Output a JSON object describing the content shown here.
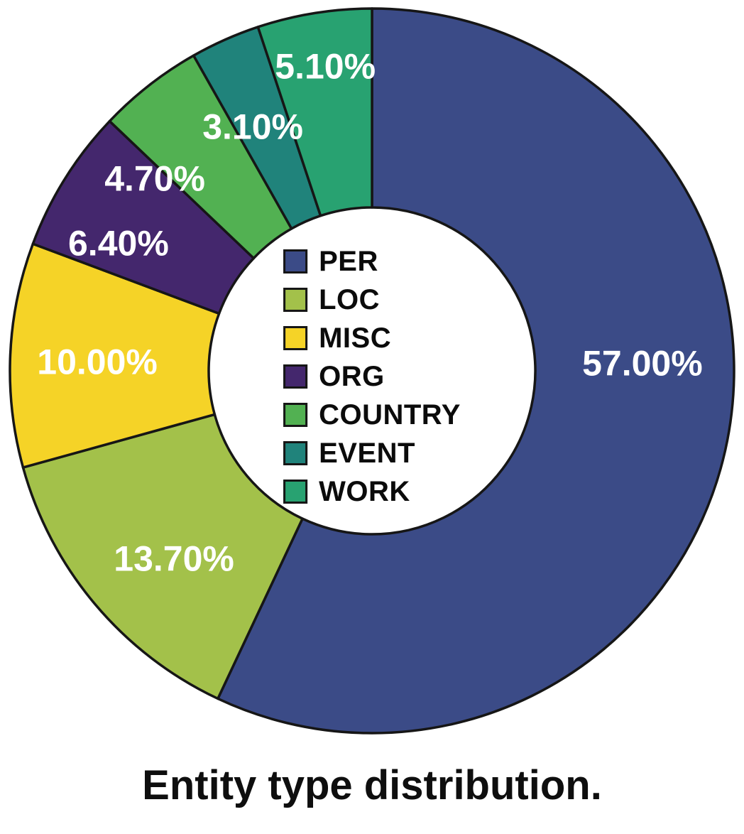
{
  "chart_data": {
    "type": "pie",
    "subtype": "donut",
    "title": "Entity type distribution.",
    "legend_position": "center",
    "hole_ratio": 0.45,
    "outline_color": "#161616",
    "label_color": "#ffffff",
    "series": [
      {
        "name": "PER",
        "value": 57.0,
        "label": "57.00%",
        "color": "#3B4B87",
        "label_angle": 89,
        "label_radius": 381
      },
      {
        "name": "LOC",
        "value": 13.7,
        "label": "13.70%",
        "color": "#A3C14A",
        "label_angle": 226.1,
        "label_radius": 387
      },
      {
        "name": "MISC",
        "value": 10.0,
        "label": "10.00%",
        "color": "#F5D327",
        "label_angle": 271.3,
        "label_radius": 387
      },
      {
        "name": "ORG",
        "value": 6.4,
        "label": "6.40%",
        "color": "#44276D",
        "label_angle": 296.2,
        "label_radius": 398
      },
      {
        "name": "COUNTRY",
        "value": 4.7,
        "label": "4.70%",
        "color": "#52B152",
        "label_angle": 311.1,
        "label_radius": 406
      },
      {
        "name": "EVENT",
        "value": 3.1,
        "label": "3.10%",
        "color": "#20837B",
        "label_angle": 333.7,
        "label_radius": 379
      },
      {
        "name": "WORK",
        "value": 5.1,
        "label": "5.10%",
        "color": "#28A271",
        "label_angle": 351.2,
        "label_radius": 430
      }
    ]
  }
}
